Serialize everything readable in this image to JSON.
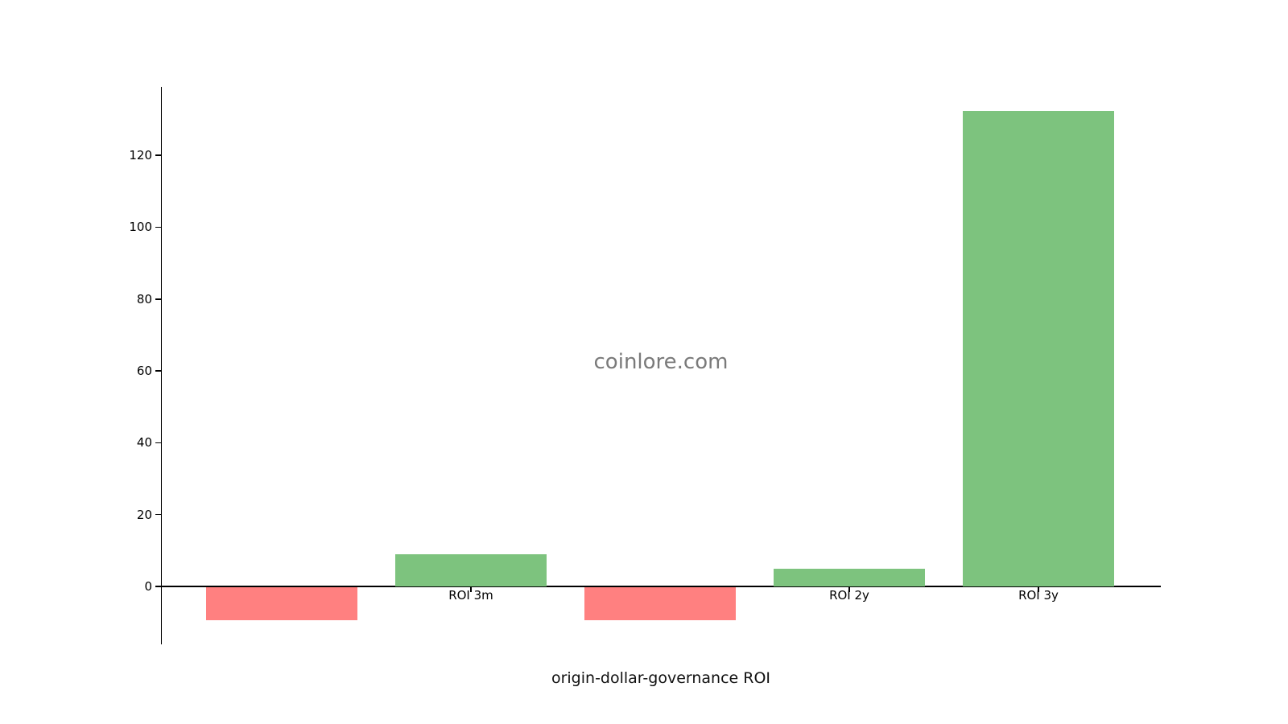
{
  "watermark": "coinlore.com",
  "chart_data": {
    "type": "bar",
    "title": "origin-dollar-governance ROI",
    "watermark": "coinlore.com",
    "categories": [
      "",
      "ROI 3m",
      "",
      "ROI 2y",
      "ROI 3y"
    ],
    "values": [
      -9.2,
      9.0,
      -9.2,
      4.9,
      132.4
    ],
    "bar_colors": [
      "#ff8080",
      "#7dc37e",
      "#ff8080",
      "#7dc37e",
      "#7dc37e"
    ],
    "positive_color": "#7dc37e",
    "negative_color": "#ff8080",
    "xlabel": "",
    "ylabel": "",
    "yticks": [
      0,
      20,
      40,
      60,
      80,
      100,
      120
    ],
    "ytick_labels": [
      "0",
      "20",
      "40",
      "60",
      "80",
      "100",
      "120"
    ],
    "ylim": [
      -16,
      139
    ],
    "grid": false,
    "legend": "none",
    "axis_color": "#000000",
    "tick_label_color": "#000000",
    "watermark_color": "#7a7a7a",
    "background_color": "#ffffff"
  }
}
